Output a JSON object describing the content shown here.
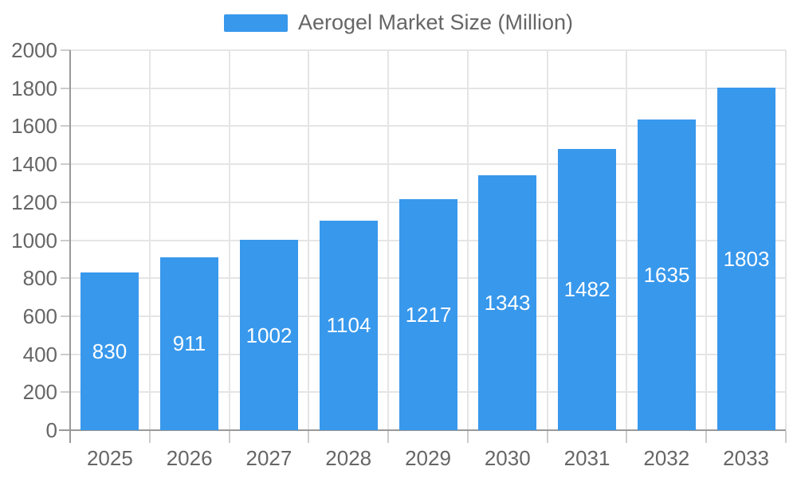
{
  "chart_data": {
    "type": "bar",
    "title": "Aerogel Market Size (Million)",
    "legend": [
      "Aerogel Market Size (Million)"
    ],
    "legend_position": "top-center",
    "categories": [
      "2025",
      "2026",
      "2027",
      "2028",
      "2029",
      "2030",
      "2031",
      "2032",
      "2033"
    ],
    "series": [
      {
        "name": "Aerogel Market Size (Million)",
        "values": [
          830,
          911,
          1002,
          1104,
          1217,
          1343,
          1482,
          1635,
          1803
        ]
      }
    ],
    "xlabel": "",
    "ylabel": "",
    "ylim": [
      0,
      2000
    ],
    "ytick_step": 200,
    "grid": true,
    "value_labels": "inside-center",
    "colors": {
      "bar": "#3898EC",
      "grid_line": "#e5e5e5",
      "axis_line": "#999999",
      "tick_line": "#cccccc",
      "text": "#666666",
      "value_label_text": "#ffffff",
      "background": "#ffffff"
    }
  }
}
